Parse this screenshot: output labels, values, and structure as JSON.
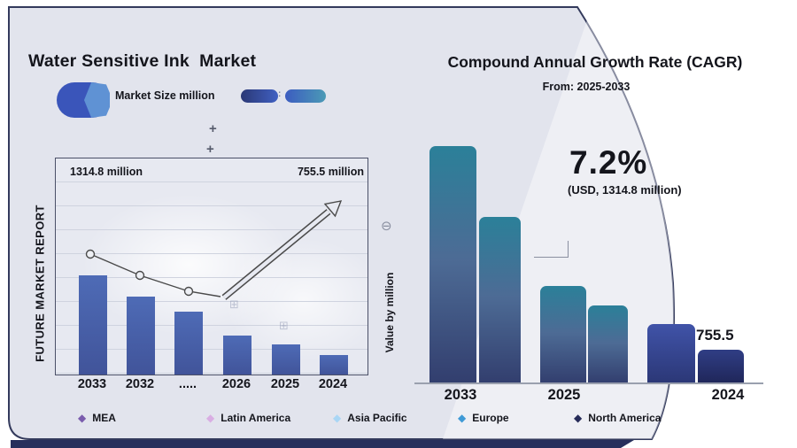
{
  "colors": {
    "panel_bg": "#e2e4ed",
    "panel_border": "#333a5c",
    "bottom_bar": "#272f5c",
    "left_bar_top": "#4e6bb6",
    "left_bar_bottom": "#41549a",
    "right_bar_teal_top": "#2b8099",
    "right_bar_navy_bottom": "#323e6e",
    "right_bar_2024_blue": "#4053a8",
    "right_bar_2024_navy": "#1f2659"
  },
  "left_panel": {
    "title": "Water Sensitive Ink  Market",
    "market_size_label": "Market Size million",
    "plus_mark": "+",
    "watermark_vertical": "FUTURE MARKET REPORT",
    "chart": {
      "start_label": "1314.8 million",
      "end_label": "755.5 million"
    },
    "faint_icon": "⊞"
  },
  "right_panel": {
    "title": "Compound Annual Growth Rate (CAGR)",
    "subtitle": "From: 2025-2033",
    "cagr": "7.2%",
    "cagr_note": "(USD, 1314.8 million)",
    "y_axis_label": "Value by million",
    "minus_icon": "⊖",
    "chart": {
      "annotation": "755.5"
    }
  },
  "legend": {
    "items": [
      {
        "label": "MEA",
        "color": "#7a5cad"
      },
      {
        "label": "Latin America",
        "color": "#d9aee3"
      },
      {
        "label": "Asia Pacific",
        "color": "#a9d6f5"
      },
      {
        "label": "Europe",
        "color": "#3f9ad6"
      },
      {
        "label": "North America",
        "color": "#262c59"
      }
    ]
  },
  "chart_data": [
    {
      "type": "bar",
      "title": "Water Sensitive Ink Market — Market Size (million)",
      "categories": [
        "2033",
        "2032",
        ".....",
        "2026",
        "2025",
        "2024"
      ],
      "values_relative_pct": [
        46,
        36,
        29,
        18,
        14,
        9
      ],
      "labeled_values": {
        "2033": 1314.8,
        "2024": 755.5
      },
      "annotations": [
        "1314.8 million",
        "755.5 million"
      ],
      "ylabel": "Market Size million",
      "grid": true,
      "decor": "declining trend line with circle markers and rising outlined arrow"
    },
    {
      "type": "bar",
      "title": "Compound Annual Growth Rate (CAGR)",
      "period": "From: 2025-2033",
      "cagr_pct": 7.2,
      "basis": "USD, 1314.8 million",
      "categories": [
        "2033",
        "2025",
        "2024"
      ],
      "series": [
        {
          "name": "bar-primary",
          "values_relative_pct": [
            100,
            41,
            25
          ]
        },
        {
          "name": "bar-secondary",
          "values_relative_pct": [
            70,
            33,
            14
          ]
        }
      ],
      "labeled_values": {
        "2024": 755.5
      },
      "ylabel": "Value by million",
      "grid": false
    }
  ]
}
